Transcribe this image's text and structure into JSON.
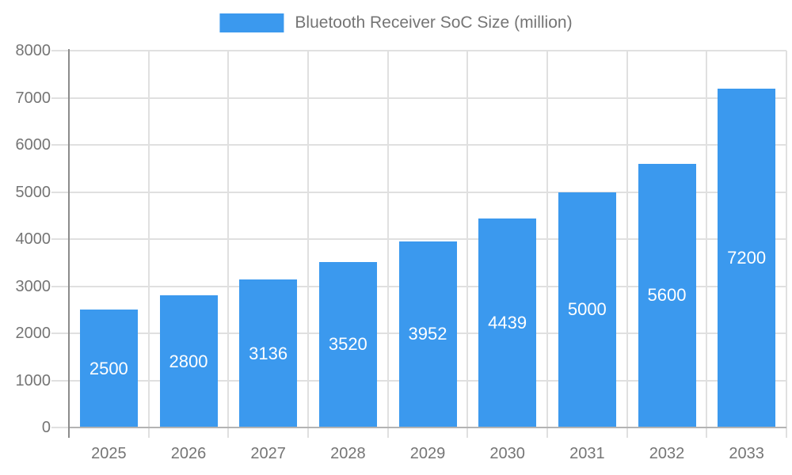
{
  "chart_data": {
    "type": "bar",
    "title": "Bluetooth Receiver SoC Size (million)",
    "categories": [
      "2025",
      "2026",
      "2027",
      "2028",
      "2029",
      "2030",
      "2031",
      "2032",
      "2033"
    ],
    "values": [
      2500,
      2800,
      3136,
      3520,
      3952,
      4439,
      5000,
      5600,
      7200
    ],
    "xlabel": "",
    "ylabel": "",
    "ylim": [
      0,
      8000
    ],
    "ytick_step": 1000,
    "ytick_labels": [
      "0",
      "1000",
      "2000",
      "3000",
      "4000",
      "5000",
      "6000",
      "7000",
      "8000"
    ],
    "grid": true,
    "legend_position": "top",
    "value_labels": "inside-center",
    "colors": {
      "bar": "#3B99EE",
      "bar_label": "#FFFFFF",
      "axis_text": "#757575",
      "gridline": "#E0E0E0",
      "y_axis_line": "#8C8C8C",
      "x_axis_line": "#B3B3B3",
      "background": "#FFFFFF"
    }
  }
}
